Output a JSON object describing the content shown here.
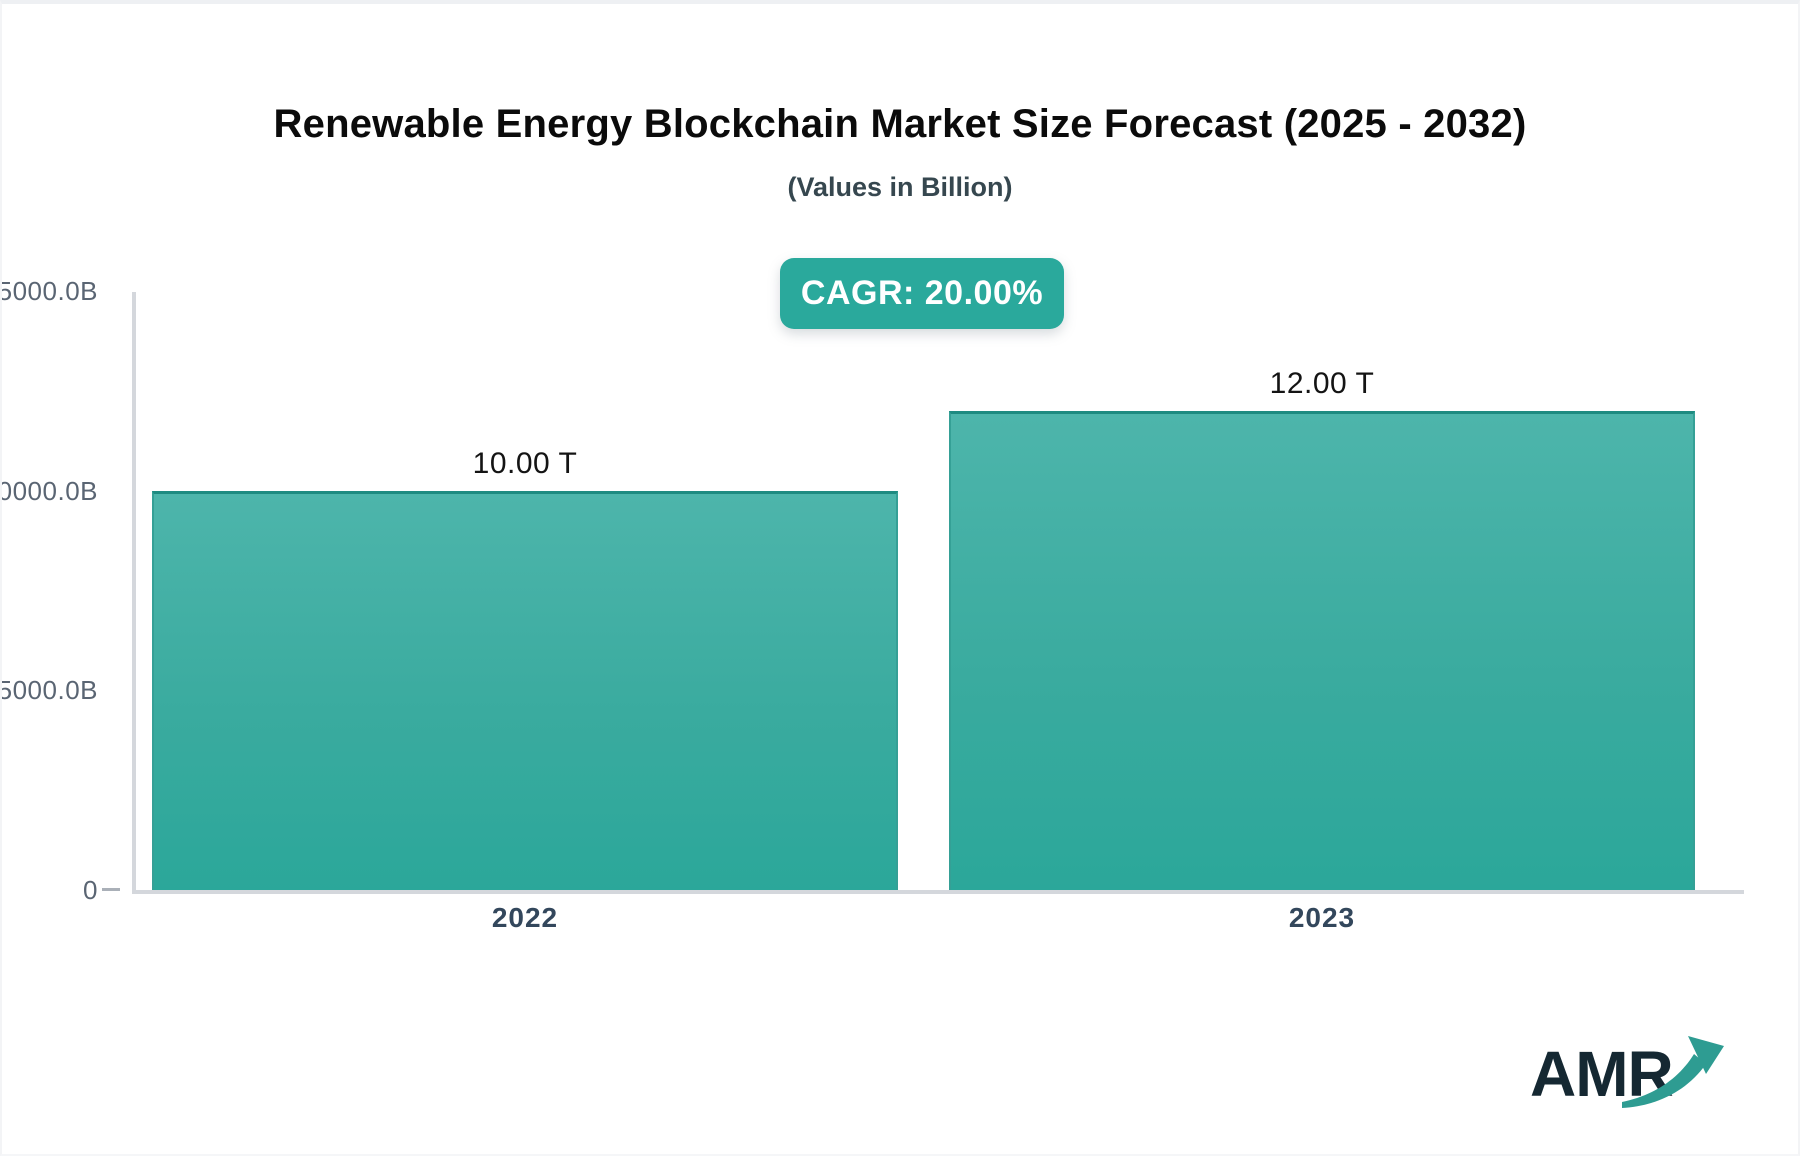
{
  "header": {
    "title": "Renewable Energy Blockchain Market Size Forecast (2025 - 2032)",
    "subtitle": "(Values in Billion)",
    "cagr_badge": "CAGR: 20.00%"
  },
  "chart_data": {
    "type": "bar",
    "title": "Renewable Energy Blockchain Market Size Forecast (2025 - 2032)",
    "subtitle": "(Values in Billion)",
    "unit": "Billion",
    "categories": [
      "2022",
      "2023"
    ],
    "values": [
      10000,
      12000
    ],
    "value_labels": [
      "10.00 T",
      "12.00 T"
    ],
    "cagr_percent": "20.00%",
    "ylim": [
      0,
      15000
    ],
    "ytick_step": 5000,
    "yticks": [
      {
        "value": 0,
        "label": "0",
        "dash": true
      },
      {
        "value": 5000,
        "label": "5000.0B",
        "dash": false
      },
      {
        "value": 10000,
        "label": "0000.0B",
        "dash": false
      },
      {
        "value": 15000,
        "label": "5000.0B",
        "dash": false
      }
    ],
    "grid": false,
    "legend": false,
    "note": "left-most digit of upper y-axis labels is clipped off-canvas"
  },
  "colors": {
    "accent_teal": "#2aa99c",
    "bar_gradient_top": "#4db5ab",
    "bar_gradient_bottom": "#2ba79a",
    "bar_border": "#1e8b81",
    "axis_line": "#d4d7dc",
    "ytick_text": "#5a6573",
    "xtick_text": "#33475c",
    "value_label_text": "#141414",
    "title_text": "#0b0b0b",
    "subtitle_text": "#36474f",
    "logo_text": "#152832",
    "logo_arrow": "#2e9c92"
  },
  "footer": {
    "logo_text": "AMR"
  }
}
